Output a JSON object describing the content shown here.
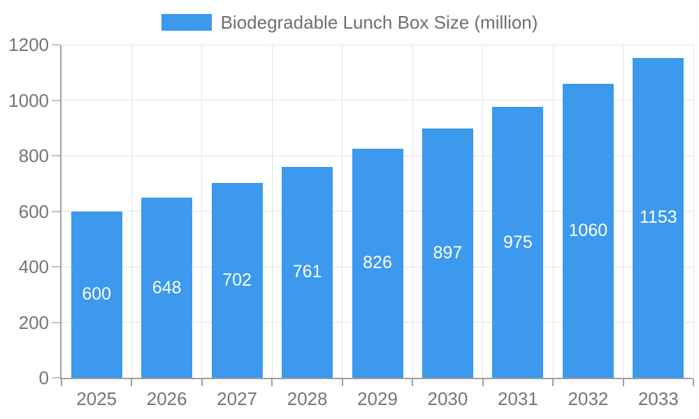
{
  "legend": {
    "label": "Biodegradable Lunch Box Size (million)"
  },
  "chart_data": {
    "type": "bar",
    "title": "Biodegradable Lunch Box Size (million)",
    "categories": [
      "2025",
      "2026",
      "2027",
      "2028",
      "2029",
      "2030",
      "2031",
      "2032",
      "2033"
    ],
    "values": [
      600,
      648,
      702,
      761,
      826,
      897,
      975,
      1060,
      1153
    ],
    "series": [
      {
        "name": "Biodegradable Lunch Box Size (million)",
        "values": [
          600,
          648,
          702,
          761,
          826,
          897,
          975,
          1060,
          1153
        ]
      }
    ],
    "xlabel": "",
    "ylabel": "",
    "ylim": [
      0,
      1200
    ],
    "yticks": [
      0,
      200,
      400,
      600,
      800,
      1000,
      1200
    ],
    "grid": true,
    "legend_position": "top",
    "bar_value_labels_inside": true,
    "colors": {
      "bar": "#3c99ee",
      "bar_label": "#ffffff",
      "axis_line": "#9e9e9e",
      "grid_line": "#e3e3e3",
      "y_tick": "#c2c2c2",
      "x_tick": "#9e9e9e",
      "axis_text": "#757575",
      "legend_text": "#6e6e6e"
    }
  }
}
